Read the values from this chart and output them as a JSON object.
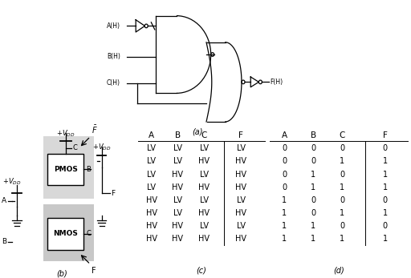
{
  "title_a": "(a)",
  "title_b": "(b)",
  "title_c": "(c)",
  "title_d": "(d)",
  "table_c_headers": [
    "A",
    "B",
    "C",
    "F"
  ],
  "table_c_data": [
    [
      "LV",
      "LV",
      "LV",
      "LV"
    ],
    [
      "LV",
      "LV",
      "HV",
      "HV"
    ],
    [
      "LV",
      "HV",
      "LV",
      "HV"
    ],
    [
      "LV",
      "HV",
      "HV",
      "HV"
    ],
    [
      "HV",
      "LV",
      "LV",
      "LV"
    ],
    [
      "HV",
      "LV",
      "HV",
      "HV"
    ],
    [
      "HV",
      "HV",
      "LV",
      "LV"
    ],
    [
      "HV",
      "HV",
      "HV",
      "HV"
    ]
  ],
  "table_d_headers": [
    "A",
    "B",
    "C",
    "F"
  ],
  "table_d_data": [
    [
      0,
      0,
      0,
      0
    ],
    [
      0,
      0,
      1,
      1
    ],
    [
      0,
      1,
      0,
      1
    ],
    [
      0,
      1,
      1,
      1
    ],
    [
      1,
      0,
      0,
      0
    ],
    [
      1,
      0,
      1,
      1
    ],
    [
      1,
      1,
      0,
      0
    ],
    [
      1,
      1,
      1,
      1
    ]
  ],
  "pmos_bg": "#d8d8d8",
  "nmos_bg": "#c8c8c8",
  "box_face": "#ffffff"
}
